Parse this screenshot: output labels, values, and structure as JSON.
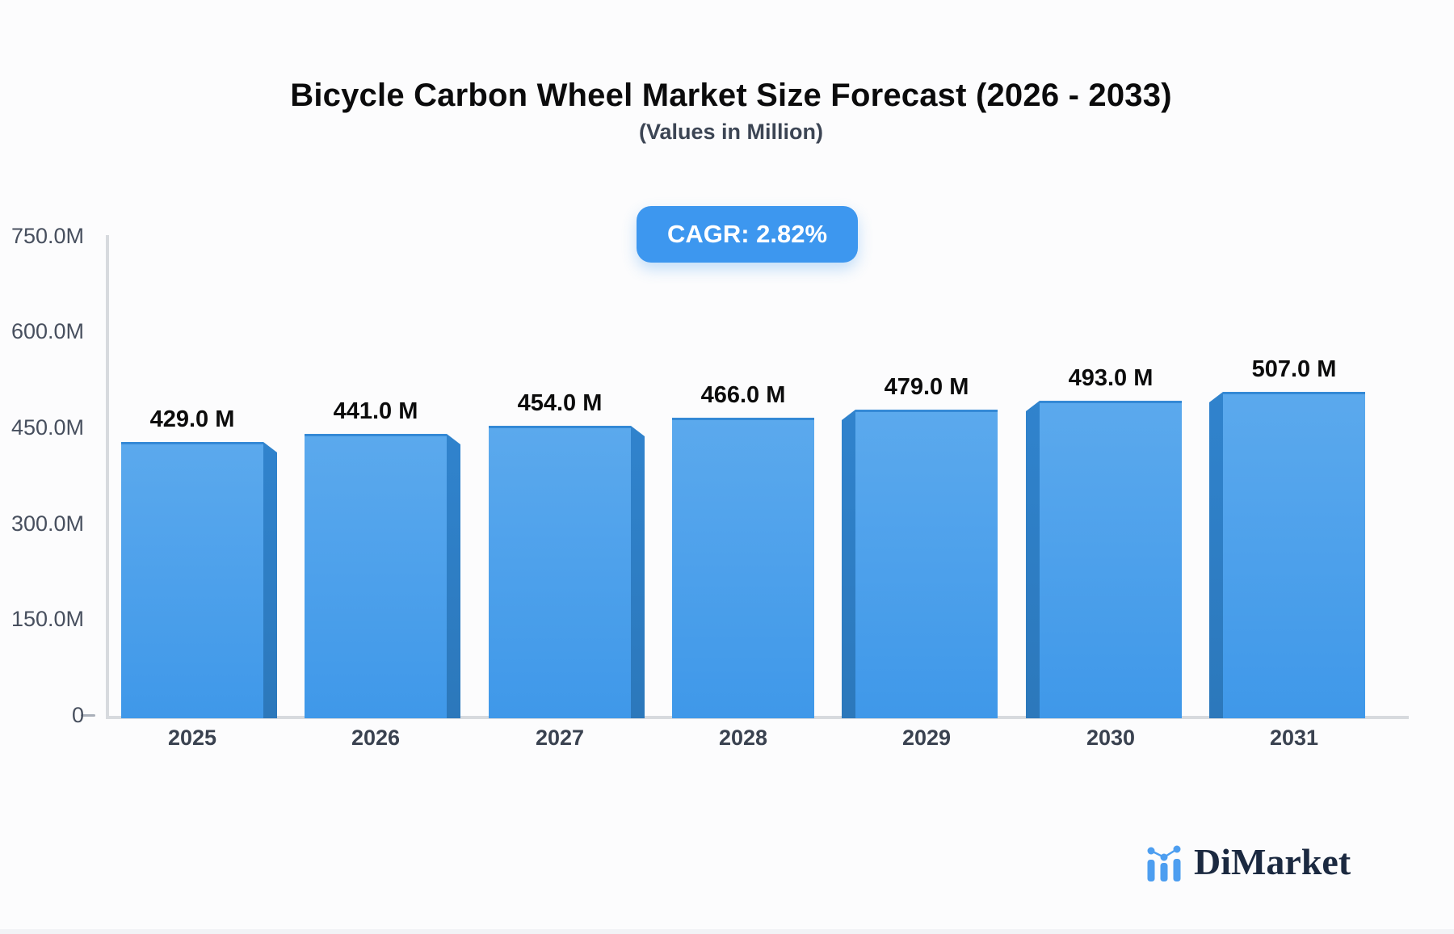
{
  "page": {
    "title": "Bicycle Carbon Wheel Market Size Forecast (2026 - 2033)",
    "subtitle": "(Values in Million)"
  },
  "badge": {
    "label": "CAGR: 2.82%"
  },
  "branding": {
    "logo_text": "DiMarket",
    "logo_icon": "mini-bar-chart-icon"
  },
  "colors": {
    "badge_bg": "#3d97ef",
    "bar_face_top": "#5ba9ed",
    "bar_face_bottom": "#3f98e9",
    "bar_face_edge": "#3489d6",
    "bar_side_top": "#3083cd",
    "bar_side_bottom": "#2c78bb",
    "axis": "#d7dade",
    "logo_blue": "#4d9ef0",
    "logo_navy": "#1b2940"
  },
  "chart_data": {
    "type": "bar",
    "title": "Bicycle Carbon Wheel Market Size Forecast (2026 - 2033)",
    "subtitle": "(Values in Million)",
    "unit": "Million",
    "categories": [
      "2025",
      "2026",
      "2027",
      "2028",
      "2029",
      "2030",
      "2031"
    ],
    "values": [
      429,
      441,
      454,
      466,
      479,
      493,
      507
    ],
    "value_labels": [
      "429.0 M",
      "441.0 M",
      "454.0 M",
      "466.0 M",
      "479.0 M",
      "493.0 M",
      "507.0 M"
    ],
    "ylim": [
      0,
      750
    ],
    "grid": false,
    "legend": "none",
    "y_axis": {
      "ticks": [
        {
          "value": 750,
          "label": "750.0M"
        },
        {
          "value": 600,
          "label": "600.0M"
        },
        {
          "value": 450,
          "label": "450.0M"
        },
        {
          "value": 300,
          "label": "300.0M"
        },
        {
          "value": 150,
          "label": "150.0M"
        },
        {
          "value": 0,
          "label": "0"
        }
      ]
    },
    "annotations": [
      {
        "text": "CAGR: 2.82%"
      }
    ]
  }
}
